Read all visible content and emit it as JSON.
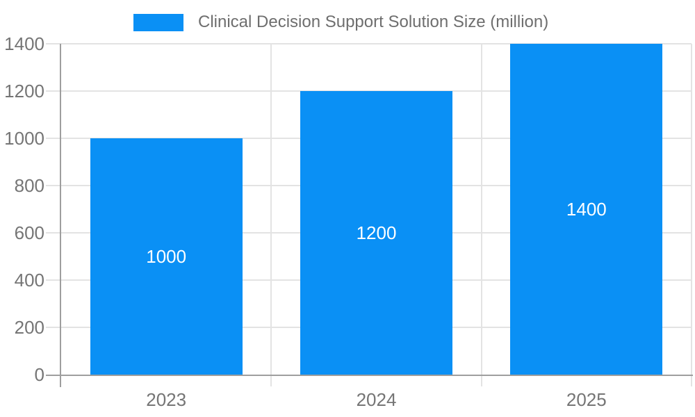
{
  "legend": {
    "label": "Clinical Decision Support Solution Size (million)"
  },
  "colors": {
    "bar": "#0a90f5",
    "grid": "#e3e3e3",
    "axis": "#9e9e9e",
    "axis_text": "#757575",
    "legend_text": "#6e6e6e",
    "data_label_text": "#ffffff",
    "background": "#ffffff"
  },
  "chart_data": {
    "type": "bar",
    "title": "",
    "xlabel": "",
    "ylabel": "",
    "categories": [
      "2023",
      "2024",
      "2025"
    ],
    "series": [
      {
        "name": "Clinical Decision Support Solution Size (million)",
        "values": [
          1000,
          1200,
          1400
        ]
      }
    ],
    "data_labels": [
      "1000",
      "1200",
      "1400"
    ],
    "data_label_position": "inside-center",
    "ylim": [
      0,
      1400
    ],
    "yticks": [
      0,
      200,
      400,
      600,
      800,
      1000,
      1200,
      1400
    ],
    "grid": true,
    "legend_position": "top"
  }
}
